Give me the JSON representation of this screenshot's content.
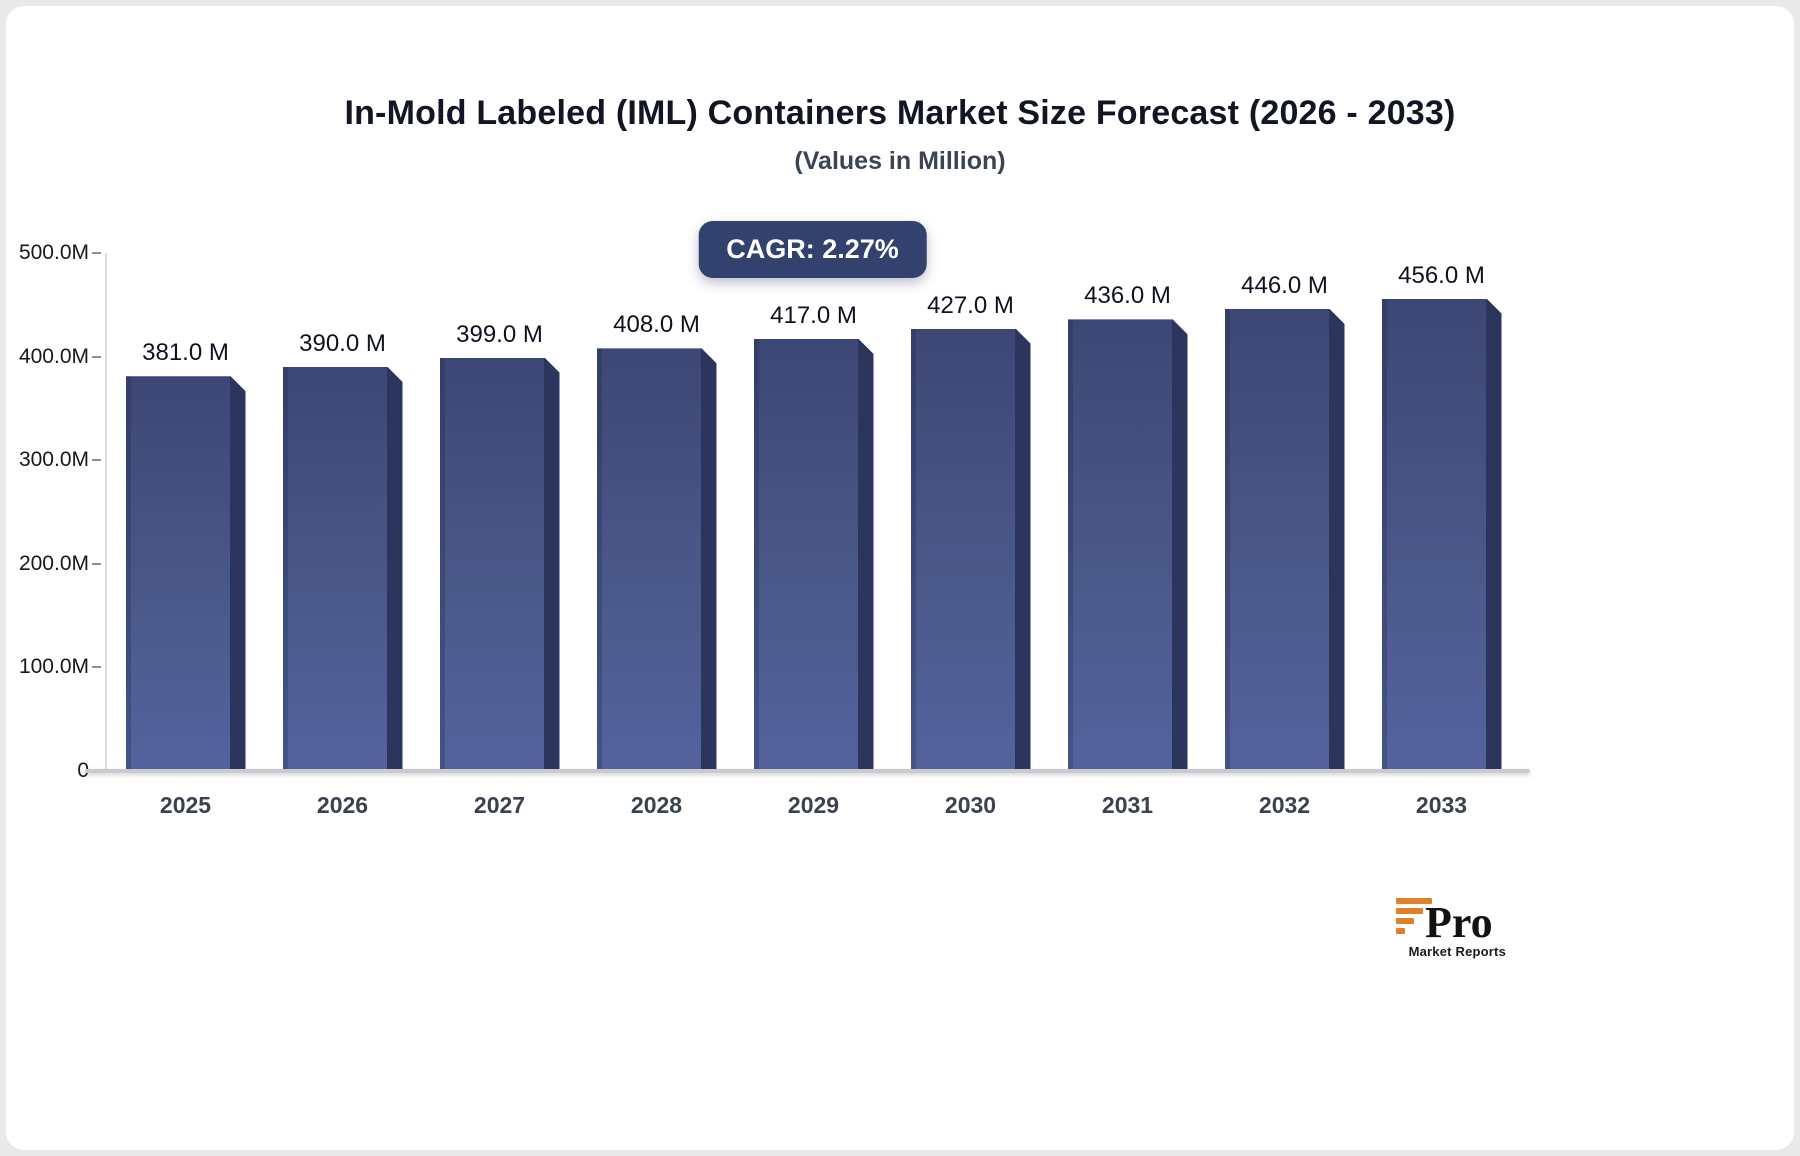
{
  "chart_data": {
    "type": "bar",
    "title": "In-Mold Labeled (IML) Containers Market Size Forecast (2026 - 2033)",
    "subtitle": "(Values in Million)",
    "annotation": "CAGR: 2.27%",
    "categories": [
      "2025",
      "2026",
      "2027",
      "2028",
      "2029",
      "2030",
      "2031",
      "2032",
      "2033"
    ],
    "values": [
      381,
      390,
      399,
      408,
      417,
      427,
      436,
      446,
      456
    ],
    "value_labels": [
      "381.0 M",
      "390.0 M",
      "399.0 M",
      "408.0 M",
      "417.0 M",
      "427.0 M",
      "436.0 M",
      "446.0 M",
      "456.0 M"
    ],
    "xlabel": "",
    "ylabel": "",
    "ylim": [
      0,
      500
    ],
    "y_ticks": [
      "500.0M",
      "400.0M",
      "300.0M",
      "200.0M",
      "100.0M",
      "0"
    ],
    "y_tick_values": [
      500,
      400,
      300,
      200,
      100,
      0
    ],
    "grid": false,
    "legend": false,
    "bar_color_top": "#3d4775",
    "bar_color_bottom": "#54639e",
    "bar_side_color": "#2b355e",
    "badge_color": "#33416f"
  },
  "branding": {
    "logo_text": "Pro",
    "logo_subtext": "Market Reports",
    "logo_accent_color": "#e0812a"
  }
}
